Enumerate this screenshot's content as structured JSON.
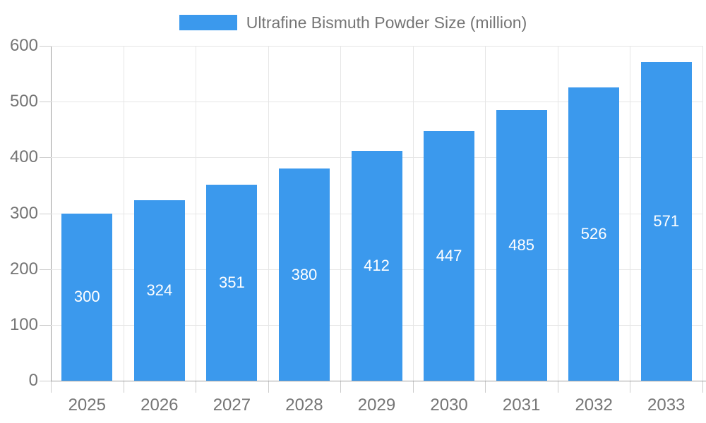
{
  "chart_data": {
    "type": "bar",
    "title": "",
    "series_name": "Ultrafine Bismuth Powder Size (million)",
    "categories": [
      "2025",
      "2026",
      "2027",
      "2028",
      "2029",
      "2030",
      "2031",
      "2032",
      "2033"
    ],
    "values": [
      300,
      324,
      351,
      380,
      412,
      447,
      485,
      526,
      571
    ],
    "bar_labels": [
      "300",
      "324",
      "351",
      "380",
      "412",
      "447",
      "485",
      "526",
      "571"
    ],
    "xlabel": "",
    "ylabel": "",
    "ylim": [
      0,
      600
    ],
    "y_ticks": [
      0,
      100,
      200,
      300,
      400,
      500,
      600
    ],
    "y_tick_labels": [
      "0",
      "100",
      "200",
      "300",
      "400",
      "500",
      "600"
    ],
    "grid": true,
    "legend_position": "top",
    "colors": {
      "bar": "#3B99ED",
      "bar_label_text": "#FFFFFF",
      "axis_text": "#757575",
      "grid_line": "#E6E6E6",
      "axis_line": "#9E9E9E",
      "tick_mark": "#CCCCCC",
      "background": "#FFFFFF"
    }
  }
}
